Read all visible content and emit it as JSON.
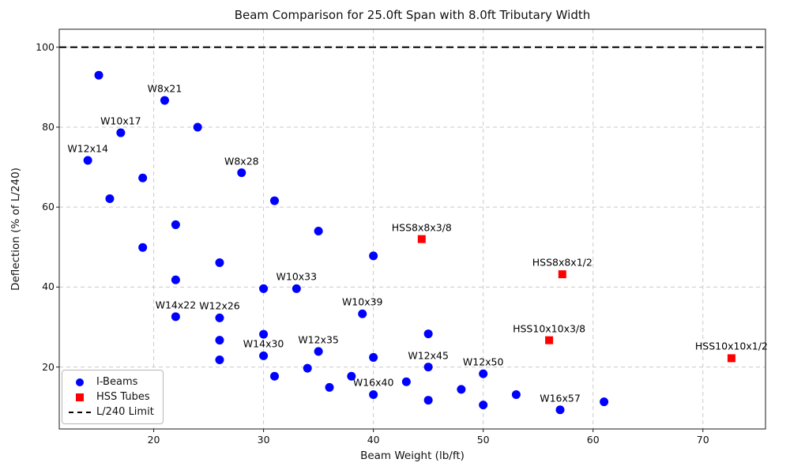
{
  "chart_data": {
    "type": "scatter",
    "title": "Beam Comparison for 25.0ft Span with 8.0ft Tributary Width",
    "xlabel": "Beam Weight (lb/ft)",
    "ylabel": "Deflection (% of L/240)",
    "xlim": [
      11.4,
      75.7
    ],
    "ylim": [
      4.5,
      104.5
    ],
    "xticks": [
      20,
      30,
      40,
      50,
      60,
      70
    ],
    "yticks": [
      20,
      40,
      60,
      80,
      100
    ],
    "grid": true,
    "legend_position": "lower-left",
    "limit_line": {
      "y": 100,
      "label": "L/240 Limit",
      "color": "#000000",
      "style": "dashed"
    },
    "legend": {
      "items": [
        {
          "label": "I-Beams",
          "marker": "circle",
          "color": "#0000ff"
        },
        {
          "label": "HSS Tubes",
          "marker": "square",
          "color": "#ff0000"
        },
        {
          "label": "L/240 Limit",
          "marker": "dashed-line",
          "color": "#000000"
        }
      ]
    },
    "series": [
      {
        "name": "I-Beams",
        "marker": "circle",
        "color": "#0000ff",
        "points": [
          {
            "x": 15,
            "y": 93,
            "label": ""
          },
          {
            "x": 21,
            "y": 86.7,
            "label": "W8x21"
          },
          {
            "x": 24,
            "y": 80,
            "label": ""
          },
          {
            "x": 17,
            "y": 78.6,
            "label": "W10x17"
          },
          {
            "x": 14,
            "y": 71.7,
            "label": "W12x14"
          },
          {
            "x": 19,
            "y": 67.3,
            "label": ""
          },
          {
            "x": 28,
            "y": 68.6,
            "label": "W8x28"
          },
          {
            "x": 16,
            "y": 62.1,
            "label": ""
          },
          {
            "x": 31,
            "y": 61.6,
            "label": ""
          },
          {
            "x": 22,
            "y": 55.6,
            "label": ""
          },
          {
            "x": 35,
            "y": 54,
            "label": ""
          },
          {
            "x": 19,
            "y": 49.9,
            "label": ""
          },
          {
            "x": 40,
            "y": 47.8,
            "label": ""
          },
          {
            "x": 26,
            "y": 46.1,
            "label": ""
          },
          {
            "x": 22,
            "y": 41.8,
            "label": ""
          },
          {
            "x": 30,
            "y": 39.6,
            "label": ""
          },
          {
            "x": 33,
            "y": 39.6,
            "label": "W10x33"
          },
          {
            "x": 22,
            "y": 32.6,
            "label": "W14x22"
          },
          {
            "x": 26,
            "y": 32.3,
            "label": "W12x26"
          },
          {
            "x": 39,
            "y": 33.3,
            "label": "W10x39"
          },
          {
            "x": 45,
            "y": 28.3,
            "label": ""
          },
          {
            "x": 30,
            "y": 28.2,
            "label": ""
          },
          {
            "x": 26,
            "y": 26.7,
            "label": ""
          },
          {
            "x": 35,
            "y": 23.9,
            "label": "W12x35"
          },
          {
            "x": 30,
            "y": 22.8,
            "label": "W14x30"
          },
          {
            "x": 40,
            "y": 22.4,
            "label": ""
          },
          {
            "x": 26,
            "y": 21.8,
            "label": ""
          },
          {
            "x": 45,
            "y": 20,
            "label": "W12x45"
          },
          {
            "x": 34,
            "y": 19.7,
            "label": ""
          },
          {
            "x": 50,
            "y": 18.3,
            "label": "W12x50"
          },
          {
            "x": 31,
            "y": 17.7,
            "label": ""
          },
          {
            "x": 38,
            "y": 17.7,
            "label": ""
          },
          {
            "x": 43,
            "y": 16.3,
            "label": ""
          },
          {
            "x": 36,
            "y": 14.9,
            "label": ""
          },
          {
            "x": 48,
            "y": 14.4,
            "label": ""
          },
          {
            "x": 40,
            "y": 13.1,
            "label": "W16x40"
          },
          {
            "x": 53,
            "y": 13.1,
            "label": ""
          },
          {
            "x": 45,
            "y": 11.7,
            "label": ""
          },
          {
            "x": 61,
            "y": 11.3,
            "label": ""
          },
          {
            "x": 50,
            "y": 10.5,
            "label": ""
          },
          {
            "x": 57,
            "y": 9.3,
            "label": "W16x57"
          }
        ]
      },
      {
        "name": "HSS Tubes",
        "marker": "square",
        "color": "#ff0000",
        "points": [
          {
            "x": 44.4,
            "y": 52,
            "label": "HSS8x8x3/8"
          },
          {
            "x": 57.2,
            "y": 43.2,
            "label": "HSS8x8x1/2"
          },
          {
            "x": 56,
            "y": 26.7,
            "label": "HSS10x10x3/8"
          },
          {
            "x": 72.6,
            "y": 22.2,
            "label": "HSS10x10x1/2"
          }
        ]
      }
    ],
    "colors": {
      "ibeam": "#0000ff",
      "hss": "#ff0000",
      "limit_line": "#000000",
      "grid": "#c9c9c9",
      "spine": "#1a1a1a"
    }
  }
}
